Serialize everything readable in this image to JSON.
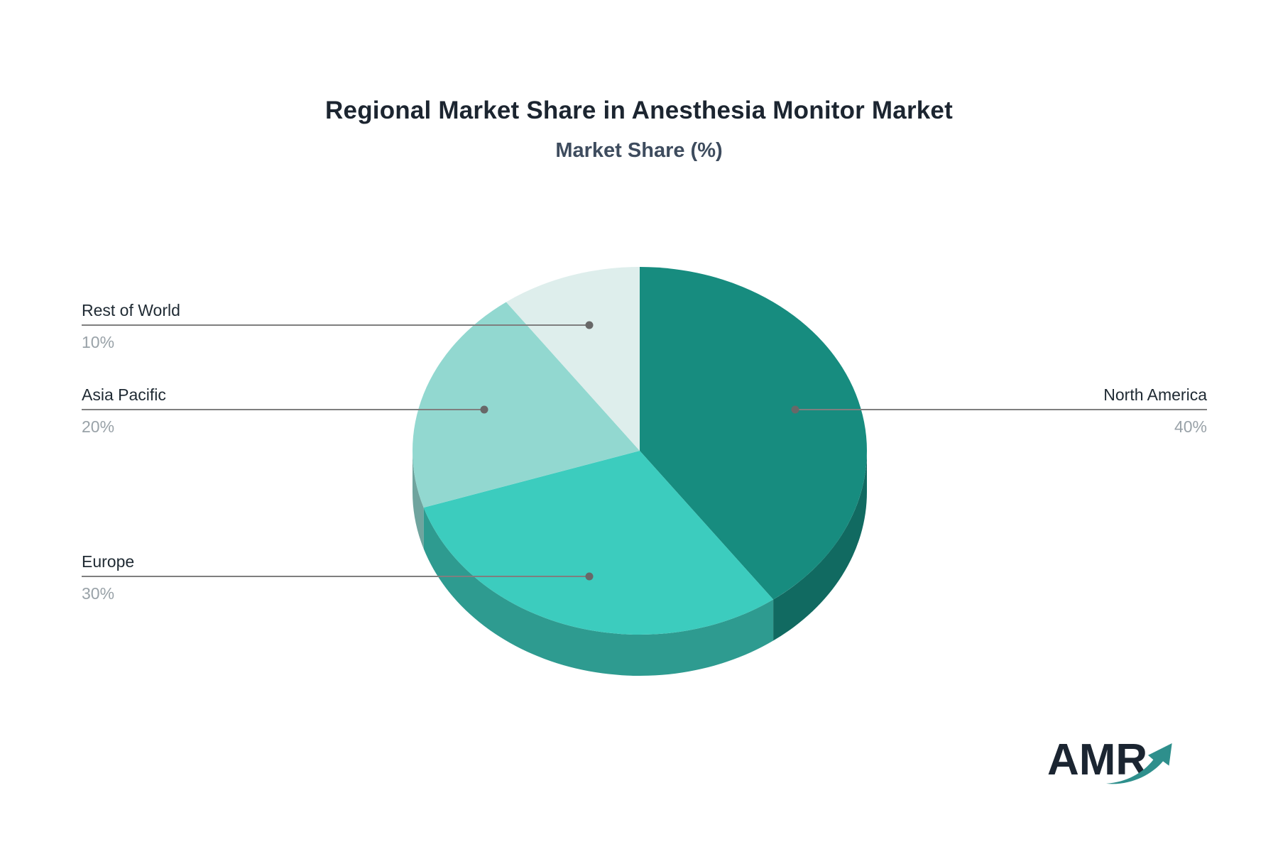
{
  "header": {
    "title": "Regional Market Share in Anesthesia Monitor Market",
    "subtitle": "Market Share (%)"
  },
  "chart_data": {
    "type": "pie",
    "title": "Regional Market Share in Anesthesia Monitor Market",
    "subtitle": "Market Share (%)",
    "unit": "%",
    "style": "3d",
    "start_angle": "top, clockwise",
    "slices": [
      {
        "label": "North America",
        "value": 40,
        "pct_label": "40%",
        "color": "#178c7f",
        "side": "right"
      },
      {
        "label": "Europe",
        "value": 30,
        "pct_label": "30%",
        "color": "#3cccbe",
        "side": "left"
      },
      {
        "label": "Asia Pacific",
        "value": 20,
        "pct_label": "20%",
        "color": "#92d8d0",
        "side": "left"
      },
      {
        "label": "Rest of World",
        "value": 10,
        "pct_label": "10%",
        "color": "#deeeec",
        "side": "left"
      }
    ],
    "leader_line_color": "#7f7f7f",
    "leader_dot_color": "#686868",
    "label_color": "#1f2a33",
    "pct_color": "#99a2a8"
  },
  "logo": {
    "text": "AMR",
    "arrow_color": "#2e8f8c"
  }
}
